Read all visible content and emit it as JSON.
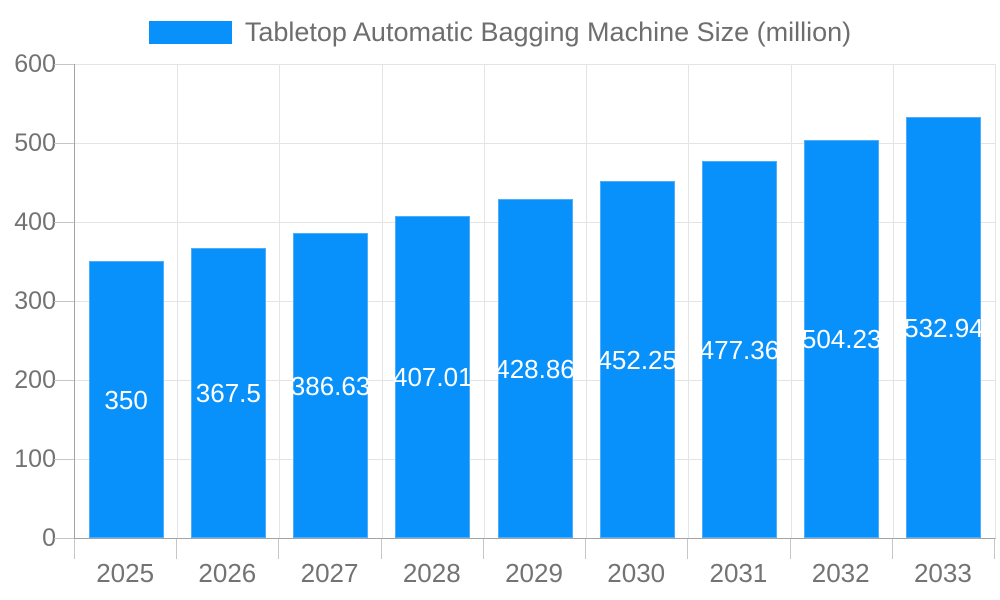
{
  "legend": {
    "label": "Tabletop Automatic Bagging Machine Size (million)"
  },
  "chart_data": {
    "type": "bar",
    "title": "",
    "series_name": "Tabletop Automatic Bagging Machine Size (million)",
    "categories": [
      "2025",
      "2026",
      "2027",
      "2028",
      "2029",
      "2030",
      "2031",
      "2032",
      "2033"
    ],
    "values": [
      350,
      367.5,
      386.63,
      407.01,
      428.86,
      452.25,
      477.36,
      504.23,
      532.94
    ],
    "value_labels": [
      "350",
      "367.5",
      "386.63",
      "407.01",
      "428.86",
      "452.25",
      "477.36",
      "504.23",
      "532.94"
    ],
    "xlabel": "",
    "ylabel": "",
    "ylim": [
      0,
      600
    ],
    "yticks": [
      0,
      100,
      200,
      300,
      400,
      500,
      600
    ],
    "grid": true,
    "legend_position": "top-center",
    "colors": {
      "bar": "#0991fb",
      "bar_edge": "#4fadfc",
      "value_label": "#ffffff",
      "axis_line": "#a3a3a3",
      "grid_line": "#e4e4e4",
      "tick_mark": "#c6c6c6",
      "axis_text": "#737373",
      "legend_text": "#6e6e6e",
      "background": "#ffffff"
    }
  }
}
